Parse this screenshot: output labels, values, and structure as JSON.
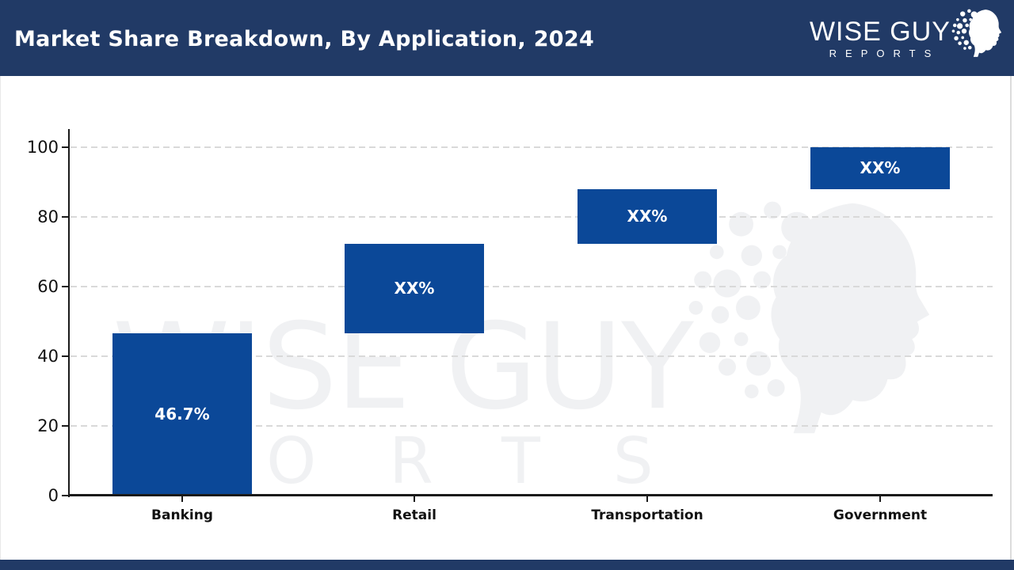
{
  "header": {
    "title": "Market Share Breakdown, By Application, 2024",
    "bg_color": "#213a66",
    "logo": {
      "line1": "WISE GUY",
      "line2": "REPORTS"
    }
  },
  "watermark": {
    "line1": "WISE GUY",
    "line2": "PORTS"
  },
  "chart_data": {
    "type": "bar",
    "subtype": "waterfall",
    "title": "Market Share Breakdown, By Application, 2024",
    "categories": [
      "Banking",
      "Retail",
      "Transportation",
      "Government"
    ],
    "segments": [
      {
        "category": "Banking",
        "start": 0,
        "end": 46.7,
        "label": "46.7%"
      },
      {
        "category": "Retail",
        "start": 46.7,
        "end": 72.3,
        "label": "XX%"
      },
      {
        "category": "Transportation",
        "start": 72.3,
        "end": 88.0,
        "label": "XX%"
      },
      {
        "category": "Government",
        "start": 88.0,
        "end": 100.0,
        "label": "XX%"
      }
    ],
    "ylim": [
      0,
      105
    ],
    "yticks": [
      0,
      20,
      40,
      60,
      80,
      100
    ],
    "grid": "dashed-horizontal",
    "legend_position": "none",
    "bar_color": "#0b4898",
    "bar_label_color": "#ffffff",
    "axis_color": "#1a1a1a",
    "grid_color": "#d9d9d9"
  }
}
